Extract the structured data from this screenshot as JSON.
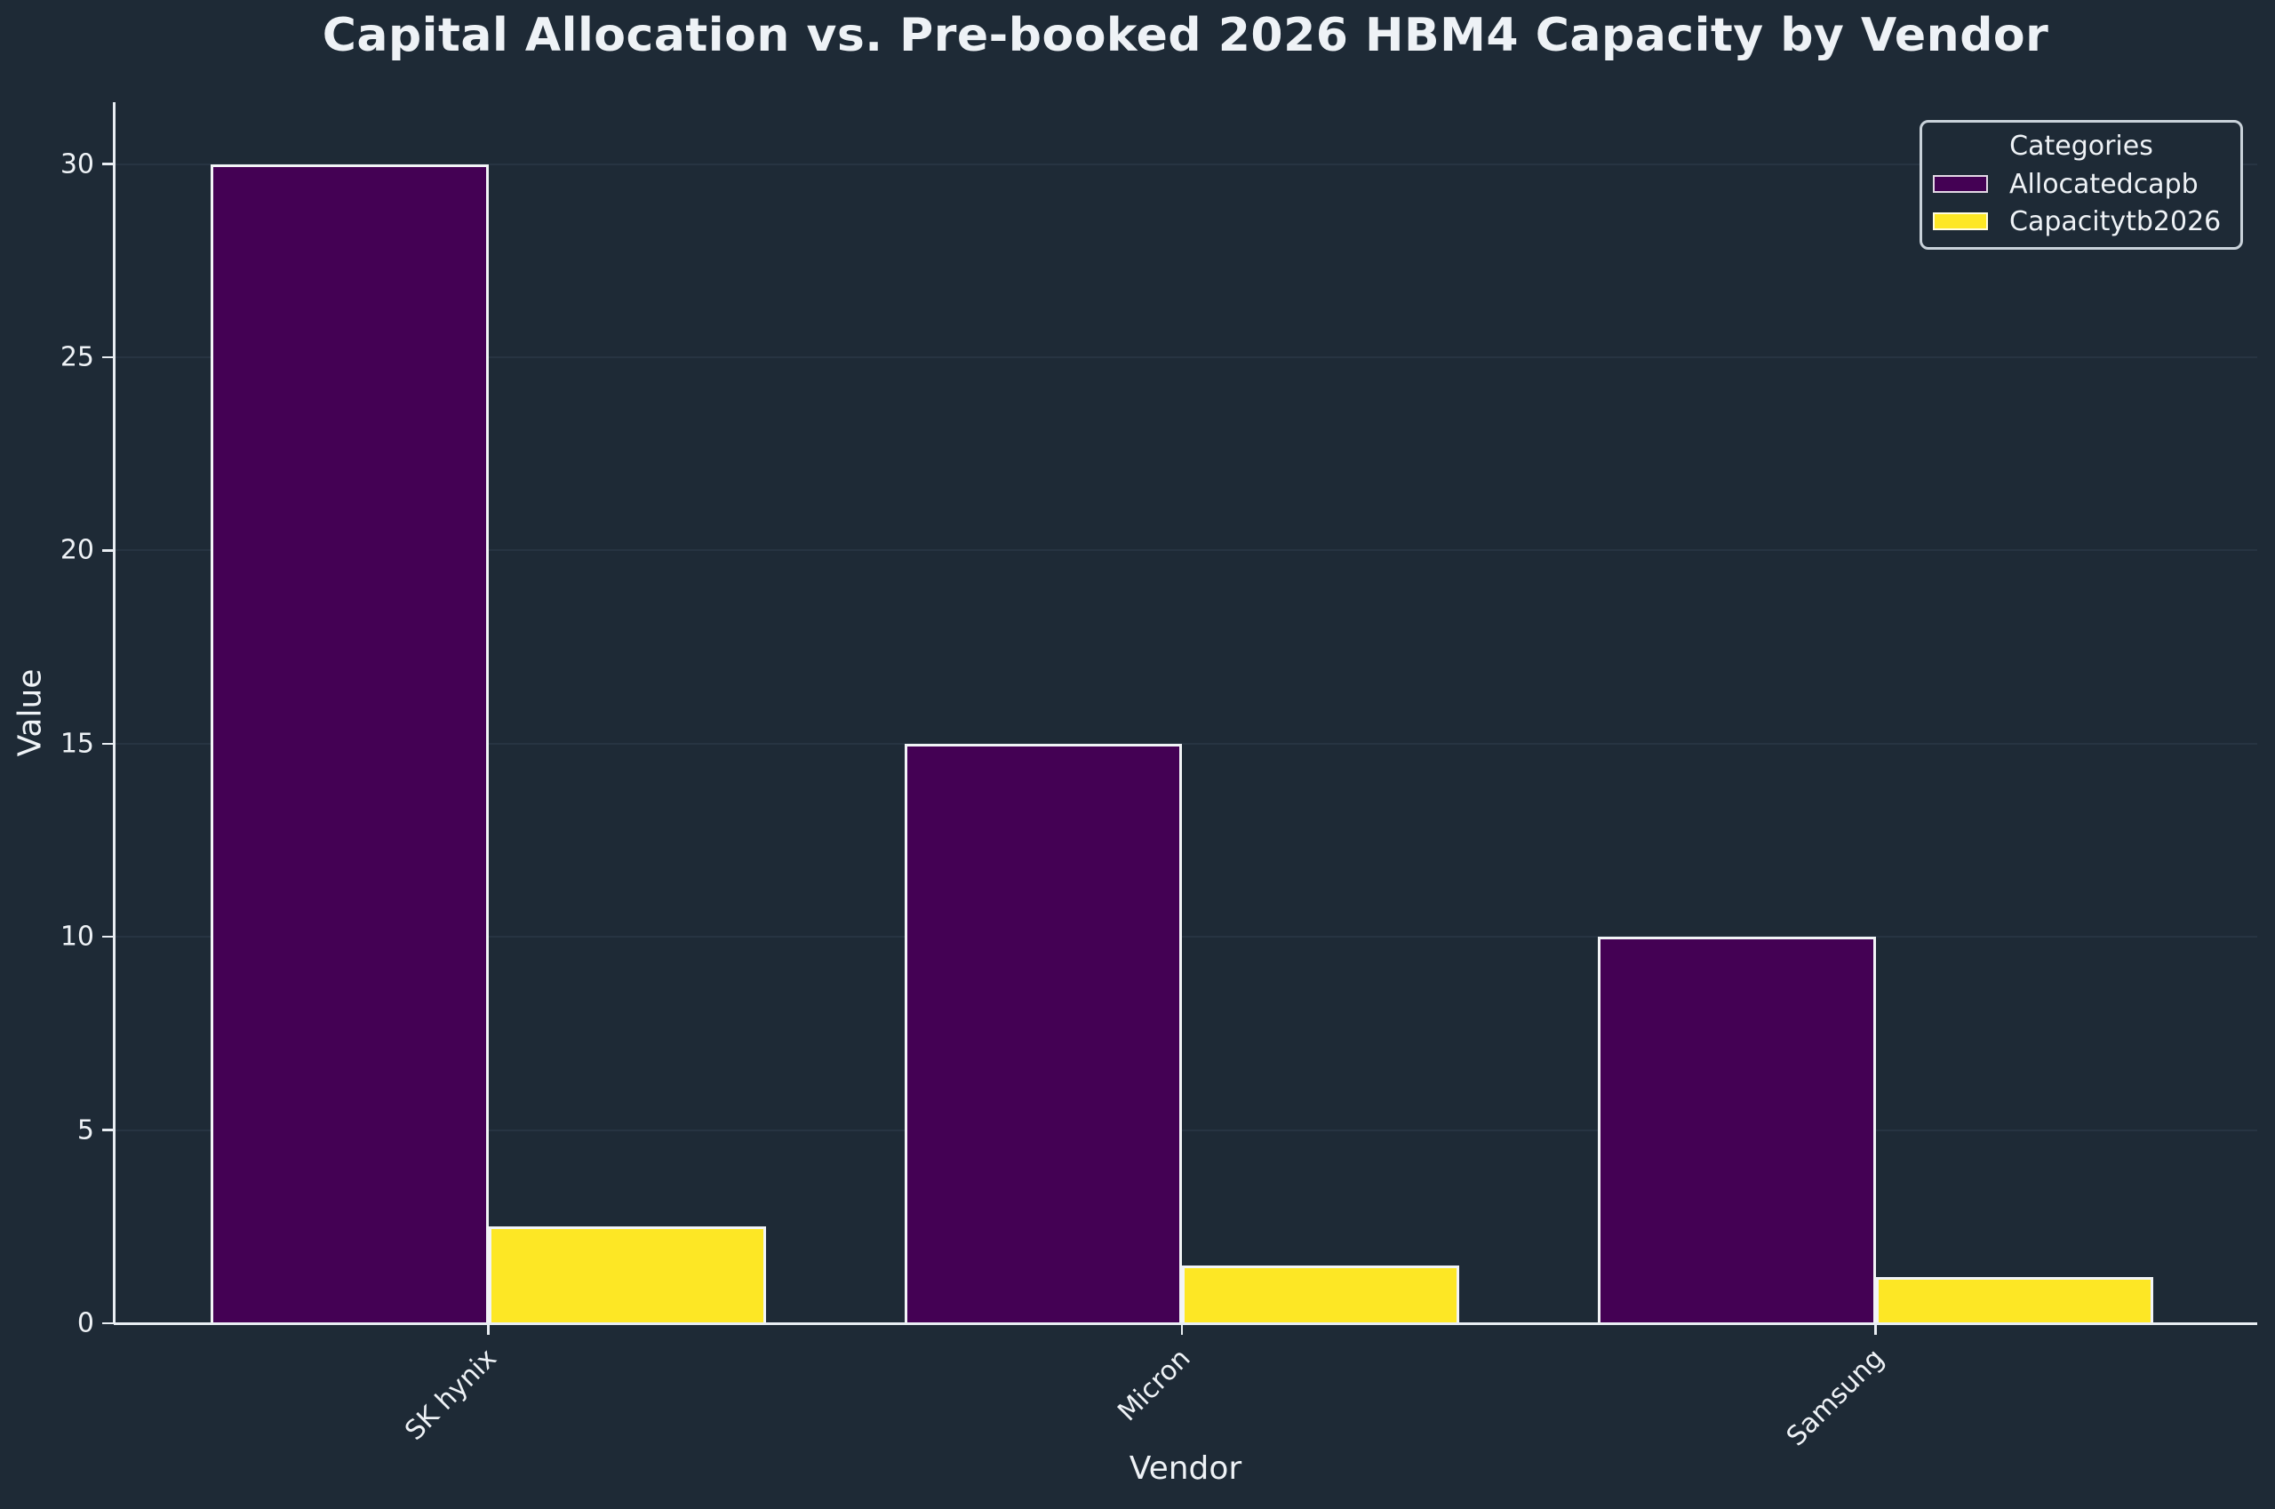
{
  "chart_data": {
    "type": "bar",
    "title": "Capital Allocation vs. Pre-booked 2026 HBM4 Capacity by Vendor",
    "xlabel": "Vendor",
    "ylabel": "Value",
    "categories": [
      "SK hynix",
      "Micron",
      "Samsung"
    ],
    "series": [
      {
        "name": "Allocatedcapb",
        "color": "#440154",
        "values": [
          30,
          15,
          10
        ]
      },
      {
        "name": "Capacitytb2026",
        "color": "#fde725",
        "values": [
          2.5,
          1.5,
          1.2
        ]
      }
    ],
    "legend_title": "Categories",
    "legend_position": "upper right",
    "yticks": [
      0,
      5,
      10,
      15,
      20,
      25,
      30
    ],
    "ylim": [
      0,
      31.6
    ],
    "x_tick_rotation_deg": 45,
    "grid": true,
    "style": {
      "background": "#1e2a36",
      "text_color": "#eef2f6",
      "spine_color": "#e9eef3",
      "grid_color": "#273442",
      "bar_edge_color": "#f2f4f6",
      "legend_border_color": "#c9d2da"
    }
  }
}
